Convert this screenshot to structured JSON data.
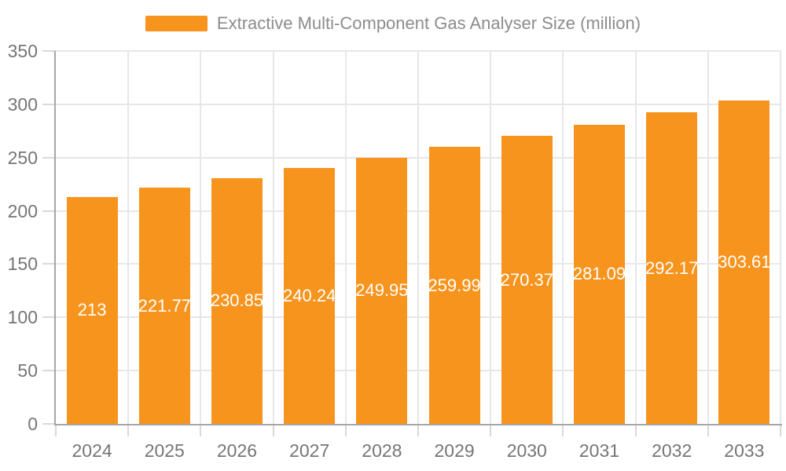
{
  "chart_data": {
    "type": "bar",
    "title": "Extractive Multi-Component Gas Analyser Size (million)",
    "categories": [
      "2024",
      "2025",
      "2026",
      "2027",
      "2028",
      "2029",
      "2030",
      "2031",
      "2032",
      "2033"
    ],
    "series": [
      {
        "name": "Extractive Multi-Component Gas Analyser Size (million)",
        "values": [
          213,
          221.77,
          230.85,
          240.24,
          249.95,
          259.99,
          270.37,
          281.09,
          292.17,
          303.61
        ],
        "value_labels": [
          "213",
          "221.77",
          "230.85",
          "240.24",
          "249.95",
          "259.99",
          "270.37",
          "281.09",
          "292.17",
          "303.61"
        ]
      }
    ],
    "xlabel": "",
    "ylabel": "",
    "ylim": [
      0,
      350
    ],
    "yticks": [
      0,
      50,
      100,
      150,
      200,
      250,
      300,
      350
    ],
    "grid": true,
    "legend_position": "top-center",
    "colors": {
      "bar": "#F7941E",
      "bar_label_text": "#FFFFFF",
      "axis_line": "#A6A6A6",
      "grid_line": "#E7E7E7",
      "tick_mark": "#D9D9D9",
      "axis_label_text": "#757575",
      "legend_text": "#8C8C8C",
      "background": "#FFFFFF"
    }
  }
}
